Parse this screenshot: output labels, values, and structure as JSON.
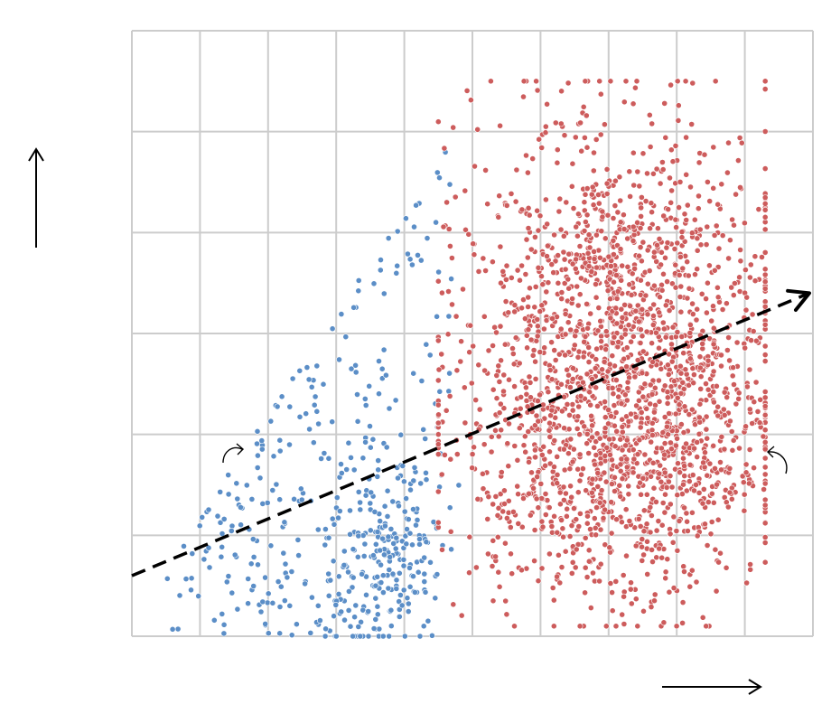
{
  "chart_data": {
    "type": "scatter",
    "title": "",
    "xlabel": "",
    "ylabel": "",
    "xlim": [
      0,
      10
    ],
    "ylim": [
      0,
      6
    ],
    "grid": true,
    "legend": "none",
    "axis_ticks_visible": false,
    "series": [
      {
        "color": "#5b8ec7",
        "point_count": 480,
        "x_range": [
          0.4,
          4.8
        ],
        "y_range": [
          0,
          5.0
        ],
        "shape": "fan-shaped cloud, dense near x≈4, y≈0.7"
      },
      {
        "color": "#cd5c5c",
        "point_count": 2200,
        "x_range": [
          4.5,
          9.3
        ],
        "y_range": [
          0.1,
          5.5
        ],
        "clusters": [
          {
            "center": [
              7.2,
              1.9
            ],
            "spread": [
              1.2,
              0.8
            ]
          },
          {
            "center": [
              7.2,
              3.4
            ],
            "spread": [
              1.1,
              0.9
            ]
          }
        ]
      }
    ],
    "trend_line": {
      "style": "dashed",
      "color": "#000000",
      "from": [
        0,
        0.6
      ],
      "to": [
        10,
        3.4
      ],
      "arrowhead": "end"
    },
    "annotations": [
      {
        "kind": "up-arrow",
        "position": "left"
      },
      {
        "kind": "right-arrow",
        "position": "bottom-right"
      },
      {
        "kind": "clockwise-curl",
        "position": "left-middle"
      },
      {
        "kind": "counterclockwise-curl",
        "position": "right-middle"
      }
    ]
  }
}
